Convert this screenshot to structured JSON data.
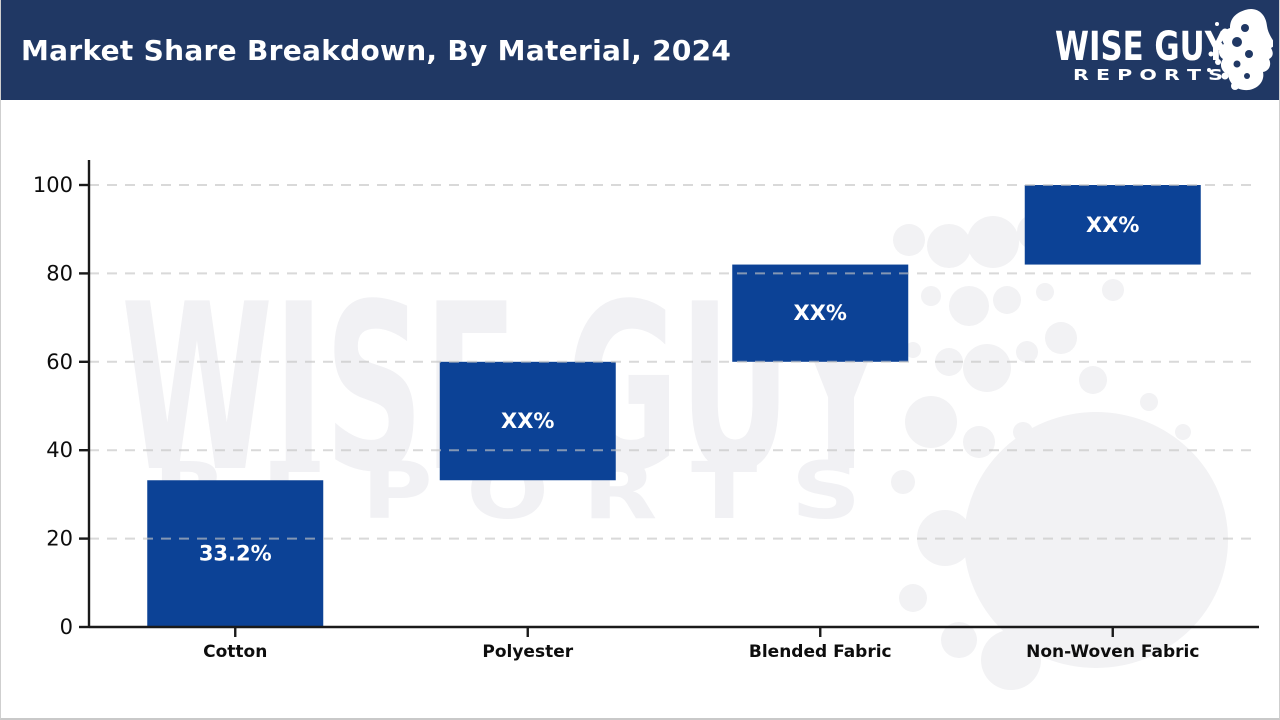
{
  "header": {
    "title": "Market Share Breakdown, By Material, 2024",
    "brand_line1": "WISE GUY",
    "brand_line2": "R E P O R T S"
  },
  "watermark": {
    "line1": "WISE GUY",
    "line2": "R E P O R T S"
  },
  "colors": {
    "header_bg": "#203864",
    "bar_color": "#0c4296",
    "grid_color": "#c4c4c4",
    "axis_color": "#1a1a1a",
    "bar_label_color": "#ffffff"
  },
  "chart_data": {
    "type": "bar",
    "subtype": "waterfall",
    "title": "Market Share Breakdown, By Material, 2024",
    "categories": [
      "Cotton",
      "Polyester",
      "Blended Fabric",
      "Non-Woven Fabric"
    ],
    "segments": [
      {
        "category": "Cotton",
        "start": 0,
        "end": 33.2,
        "value": 33.2,
        "label": "33.2%"
      },
      {
        "category": "Polyester",
        "start": 33.2,
        "end": 60,
        "value": 26.8,
        "label": "XX%"
      },
      {
        "category": "Blended Fabric",
        "start": 60,
        "end": 82,
        "value": 22,
        "label": "XX%"
      },
      {
        "category": "Non-Woven Fabric",
        "start": 82,
        "end": 100,
        "value": 18,
        "label": "XX%"
      }
    ],
    "y_ticks": [
      0,
      20,
      40,
      60,
      80,
      100
    ],
    "ylim": [
      0,
      105
    ],
    "xlabel": "",
    "ylabel": "",
    "grid": "horizontal dashed, drawn over bars",
    "legend": "none",
    "bar_color": "#0c4296"
  }
}
